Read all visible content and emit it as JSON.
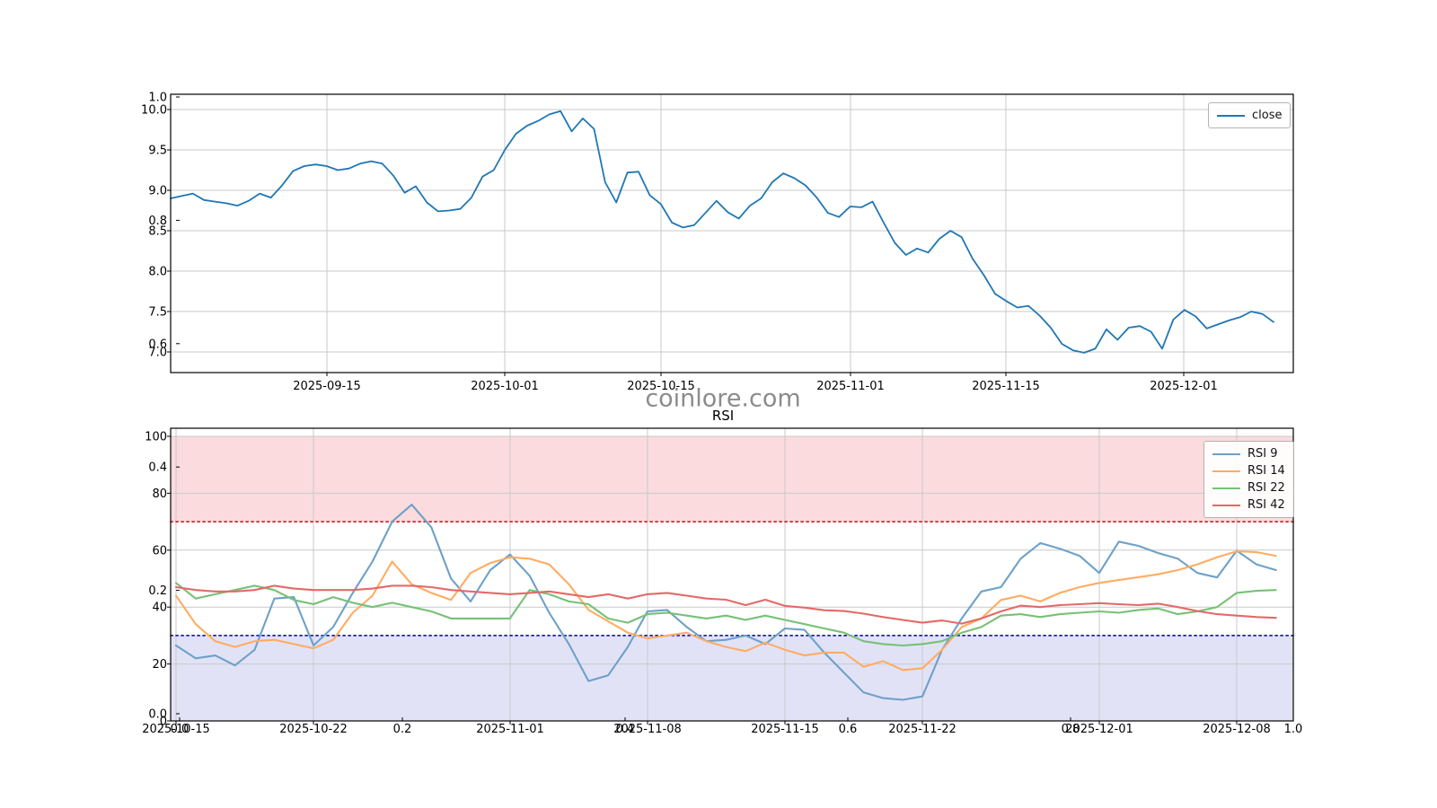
{
  "watermark": "coinlore.com",
  "price_chart": {
    "legend_label": "close",
    "y_ticks": [
      "10.0",
      "9.5",
      "9.0",
      "8.5",
      "8.0",
      "7.5",
      "7.0"
    ],
    "x_ticks": [
      "2025-09-15",
      "2025-10-01",
      "2025-10-15",
      "2025-11-01",
      "2025-11-15",
      "2025-12-01"
    ]
  },
  "rsi_chart": {
    "title": "RSI",
    "legend_labels": [
      "RSI 9",
      "RSI 14",
      "RSI 22",
      "RSI 42"
    ],
    "y_ticks": [
      "100",
      "80",
      "60",
      "40",
      "20",
      "0"
    ],
    "x_ticks": [
      "2025-10-15",
      "2025-10-22",
      "2025-11-01",
      "2025-11-08",
      "2025-11-15",
      "2025-11-22",
      "2025-12-01",
      "2025-12-08"
    ]
  },
  "overlay_axis": {
    "x_ticks": [
      "0.0",
      "0.2",
      "0.4",
      "0.6",
      "0.8",
      "1.0"
    ],
    "y_ticks": [
      "1.0",
      "0.8",
      "0.6",
      "0.4",
      "0.2",
      "0.0"
    ]
  },
  "colors": {
    "close": "#1f77b4",
    "rsi9": "#6da1c9",
    "rsi14": "#ffac62",
    "rsi22": "#76c176",
    "rsi42": "#e46969",
    "overbought_band": "#fbdbde",
    "oversold_band": "#e2e2f7",
    "overbought_line": "#e3202f",
    "oversold_line": "#1a1acd",
    "grid": "#c9c9c9",
    "watermark_gray": "#8c8c8c"
  },
  "chart_data": [
    {
      "type": "line",
      "title": "",
      "ylabel": "",
      "ylim": [
        6.74,
        10.19
      ],
      "yticks": [
        10.0,
        9.5,
        9.0,
        8.5,
        8.0,
        7.5,
        7.0
      ],
      "xticks": [
        "2025-09-15",
        "2025-10-01",
        "2025-10-15",
        "2025-11-01",
        "2025-11-15",
        "2025-12-01"
      ],
      "grid": true,
      "legend_position": "upper right",
      "series": [
        {
          "name": "close",
          "color": "#1f77b4",
          "start_date": "2025-09-01",
          "freq": "daily",
          "values": [
            8.9,
            8.93,
            8.96,
            8.88,
            8.86,
            8.84,
            8.81,
            8.87,
            8.96,
            8.91,
            9.06,
            9.24,
            9.3,
            9.32,
            9.3,
            9.25,
            9.27,
            9.33,
            9.36,
            9.33,
            9.18,
            8.97,
            9.05,
            8.85,
            8.74,
            8.75,
            8.77,
            8.91,
            9.17,
            9.25,
            9.5,
            9.7,
            9.8,
            9.86,
            9.94,
            9.98,
            9.73,
            9.89,
            9.76,
            9.1,
            8.85,
            9.22,
            9.23,
            8.94,
            8.83,
            8.6,
            8.54,
            8.57,
            8.72,
            8.87,
            8.73,
            8.65,
            8.81,
            8.9,
            9.1,
            9.21,
            9.15,
            9.06,
            8.91,
            8.72,
            8.67,
            8.8,
            8.79,
            8.86,
            8.6,
            8.35,
            8.2,
            8.28,
            8.23,
            8.4,
            8.5,
            8.42,
            8.15,
            7.95,
            7.72,
            7.63,
            7.55,
            7.57,
            7.45,
            7.3,
            7.1,
            7.02,
            6.99,
            7.04,
            7.28,
            7.15,
            7.3,
            7.32,
            7.25,
            7.04,
            7.4,
            7.52,
            7.44,
            7.29,
            7.34,
            7.39,
            7.43,
            7.5,
            7.47,
            7.37
          ]
        }
      ]
    },
    {
      "type": "line",
      "title": "RSI",
      "ylim": [
        0,
        102.8
      ],
      "yticks": [
        100,
        80,
        60,
        40,
        20,
        0
      ],
      "xticks": [
        "2025-10-15",
        "2025-10-22",
        "2025-11-01",
        "2025-11-08",
        "2025-11-15",
        "2025-11-22",
        "2025-12-01",
        "2025-12-08"
      ],
      "grid": true,
      "legend_position": "upper right",
      "bands": [
        {
          "from": 70,
          "to": 100,
          "color": "#fbdbde",
          "meaning": "overbought"
        },
        {
          "from": 0,
          "to": 30,
          "color": "#e2e2f7",
          "meaning": "oversold"
        }
      ],
      "hlines": [
        {
          "y": 70,
          "color": "#e3202f",
          "style": "dotted"
        },
        {
          "y": 30,
          "color": "#1a1acd",
          "style": "dotted"
        }
      ],
      "series": [
        {
          "name": "RSI 9",
          "color": "#6da1c9",
          "start_date": "2025-10-15",
          "freq": "daily",
          "values": [
            26.5,
            22,
            23,
            19.5,
            25,
            43,
            43.5,
            26.5,
            33,
            45,
            56,
            70,
            76,
            68,
            50,
            42,
            53,
            58.5,
            51,
            38,
            27,
            14,
            16,
            26,
            38.5,
            39,
            33,
            28,
            28.5,
            30,
            27,
            32.5,
            32,
            24,
            17,
            10,
            8,
            7.4,
            8.6,
            25,
            36,
            45.5,
            47,
            57,
            62.5,
            60.5,
            58,
            52,
            63,
            61.5,
            59,
            57,
            52,
            50.4,
            59.8,
            55,
            53
          ]
        },
        {
          "name": "RSI 14",
          "color": "#ffac62",
          "start_date": "2025-10-15",
          "freq": "daily",
          "values": [
            44,
            34,
            28,
            26,
            28,
            28.5,
            27,
            25.5,
            28.5,
            38,
            44,
            56,
            48,
            45,
            42.5,
            52,
            55.5,
            57.5,
            57,
            55,
            48,
            39,
            35,
            31,
            29,
            30,
            31,
            28,
            26,
            24.5,
            27.5,
            25,
            23,
            24,
            24,
            19,
            21,
            17.9,
            18.5,
            25,
            33,
            36,
            42.5,
            44,
            42,
            45,
            47,
            48.5,
            49.5,
            50.5,
            51.5,
            53,
            55,
            57.5,
            59.6,
            59.3,
            58
          ]
        },
        {
          "name": "RSI 22",
          "color": "#76c176",
          "start_date": "2025-10-15",
          "freq": "daily",
          "values": [
            48.5,
            43,
            44.5,
            46,
            47.5,
            46,
            42.5,
            41,
            43.5,
            41.5,
            40,
            41.5,
            40,
            38.5,
            36,
            36,
            36,
            36,
            46,
            44.5,
            42,
            41,
            36,
            34.5,
            37.5,
            38,
            37,
            36,
            37,
            35.5,
            37,
            35.5,
            34,
            32.5,
            31,
            28,
            27,
            26.5,
            27,
            28,
            31,
            33,
            37,
            37.5,
            36.5,
            37.5,
            38,
            38.5,
            38,
            39,
            39.5,
            37.5,
            38.5,
            40,
            45,
            45.7,
            46
          ]
        },
        {
          "name": "RSI 42",
          "color": "#e46969",
          "start_date": "2025-10-15",
          "freq": "daily",
          "values": [
            47,
            46,
            45.5,
            45.5,
            46,
            47.5,
            46.5,
            46,
            46,
            46,
            46.5,
            47.5,
            47.5,
            47,
            46,
            45.5,
            45,
            44.5,
            45,
            45.5,
            44.5,
            43.5,
            44.5,
            43,
            44.5,
            45,
            44,
            43,
            42.6,
            40.7,
            42.6,
            40.4,
            39.8,
            38.9,
            38.6,
            37.7,
            36.5,
            35.5,
            34.5,
            35.3,
            34.2,
            36,
            38.5,
            40.5,
            40,
            40.7,
            41,
            41.4,
            41,
            40.7,
            41.2,
            40,
            38.6,
            37.5,
            37,
            36.5,
            36.2
          ]
        }
      ]
    }
  ]
}
